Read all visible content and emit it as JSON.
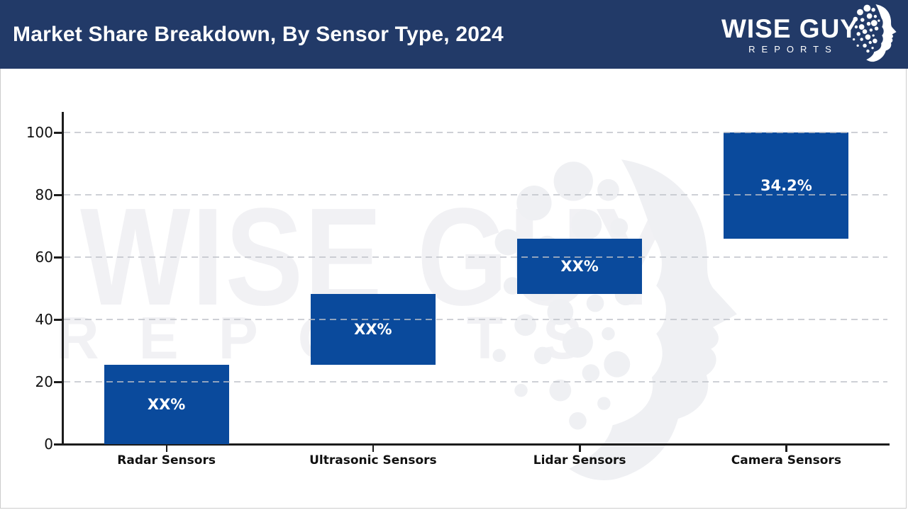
{
  "header": {
    "title": "Market Share Breakdown, By Sensor Type, 2024",
    "logo": {
      "line1": "WISE GUY",
      "line2": "REPORTS"
    }
  },
  "watermark": {
    "line1": "WISE GUY",
    "line2": "REPORTS"
  },
  "chart_data": {
    "type": "bar",
    "subtype": "floating-waterfall-segments",
    "title": "Market Share Breakdown, By Sensor Type, 2024",
    "categories": [
      "Radar Sensors",
      "Ultrasonic Sensors",
      "Lidar Sensors",
      "Camera Sensors"
    ],
    "segments": [
      {
        "category": "Radar Sensors",
        "start": 0,
        "end": 25.4,
        "label": "XX%"
      },
      {
        "category": "Ultrasonic Sensors",
        "start": 25.4,
        "end": 48.2,
        "label": "XX%"
      },
      {
        "category": "Lidar Sensors",
        "start": 48.2,
        "end": 65.8,
        "label": "XX%"
      },
      {
        "category": "Camera Sensors",
        "start": 65.8,
        "end": 100,
        "label": "34.2%"
      }
    ],
    "xlabel": "",
    "ylabel": "",
    "ylim": [
      0,
      105
    ],
    "yticks": [
      0,
      20,
      40,
      60,
      80,
      100
    ],
    "grid": "horizontal-dashed",
    "legend": "none",
    "bar_color": "#0a4a9c",
    "bar_label_color": "#ffffff"
  },
  "colors": {
    "header_background": "#223a68",
    "bar": "#0a4a9c",
    "axis": "#1c1c1c",
    "gridline": "#d9d9d9",
    "watermark": "#f1f1f4"
  }
}
